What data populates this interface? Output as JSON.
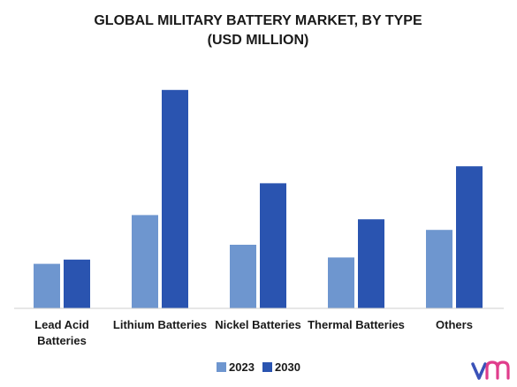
{
  "chart_data": {
    "type": "bar",
    "title_lines": [
      "GLOBAL MILITARY BATTERY MARKET, BY TYPE",
      "(USD MILLION)"
    ],
    "categories": [
      [
        "Lead Acid",
        "Batteries"
      ],
      [
        "Lithium Batteries"
      ],
      [
        "Nickel Batteries"
      ],
      [
        "Thermal Batteries"
      ],
      [
        "Others"
      ]
    ],
    "series": [
      {
        "name": "2023",
        "color": "#6e96cf",
        "values": [
          21,
          44,
          30,
          24,
          37
        ]
      },
      {
        "name": "2030",
        "color": "#2a54b0",
        "values": [
          23,
          103,
          59,
          42,
          67
        ]
      }
    ],
    "ylim": [
      0,
      110
    ],
    "grid": false,
    "legend_position": "bottom-center",
    "logo_icon": "vmr-logo-icon"
  }
}
